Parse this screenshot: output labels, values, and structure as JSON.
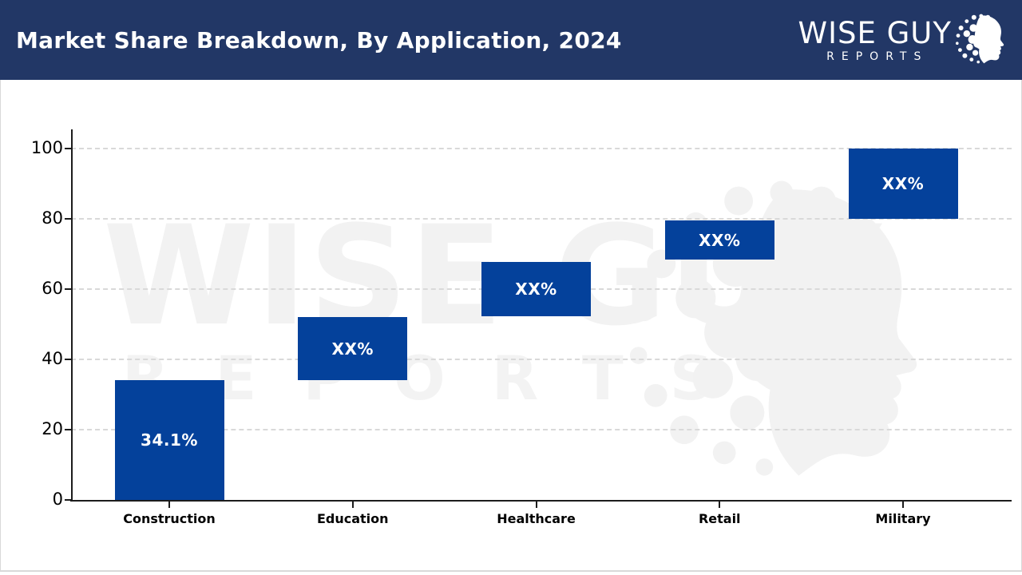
{
  "header": {
    "title": "Market Share Breakdown, By Application, 2024",
    "logo": {
      "name": "WISE GUY",
      "sub": "REPORTS"
    }
  },
  "watermark": {
    "line1": "WISE GUY",
    "line2": "REPORTS"
  },
  "chart_data": {
    "type": "bar",
    "subtype": "waterfall",
    "title": "Market Share Breakdown, By Application, 2024",
    "categories": [
      "Construction",
      "Education",
      "Healthcare",
      "Retail",
      "Military"
    ],
    "segments": [
      {
        "category": "Construction",
        "start": 0,
        "end": 34.1,
        "label": "34.1%"
      },
      {
        "category": "Education",
        "start": 34.1,
        "end": 52,
        "label": "XX%"
      },
      {
        "category": "Healthcare",
        "start": 52.2,
        "end": 67.8,
        "label": "XX%"
      },
      {
        "category": "Retail",
        "start": 68.3,
        "end": 79.5,
        "label": "XX%"
      },
      {
        "category": "Military",
        "start": 80,
        "end": 100,
        "label": "XX%"
      }
    ],
    "yticks": [
      0,
      20,
      40,
      60,
      80,
      100
    ],
    "ylim": [
      0,
      105
    ],
    "xlabel": "",
    "ylabel": "",
    "grid": "horizontal-dashed",
    "legend": "none",
    "bar_color": "#04419b",
    "bar_label_color": "#ffffff",
    "header_color": "#223766"
  }
}
